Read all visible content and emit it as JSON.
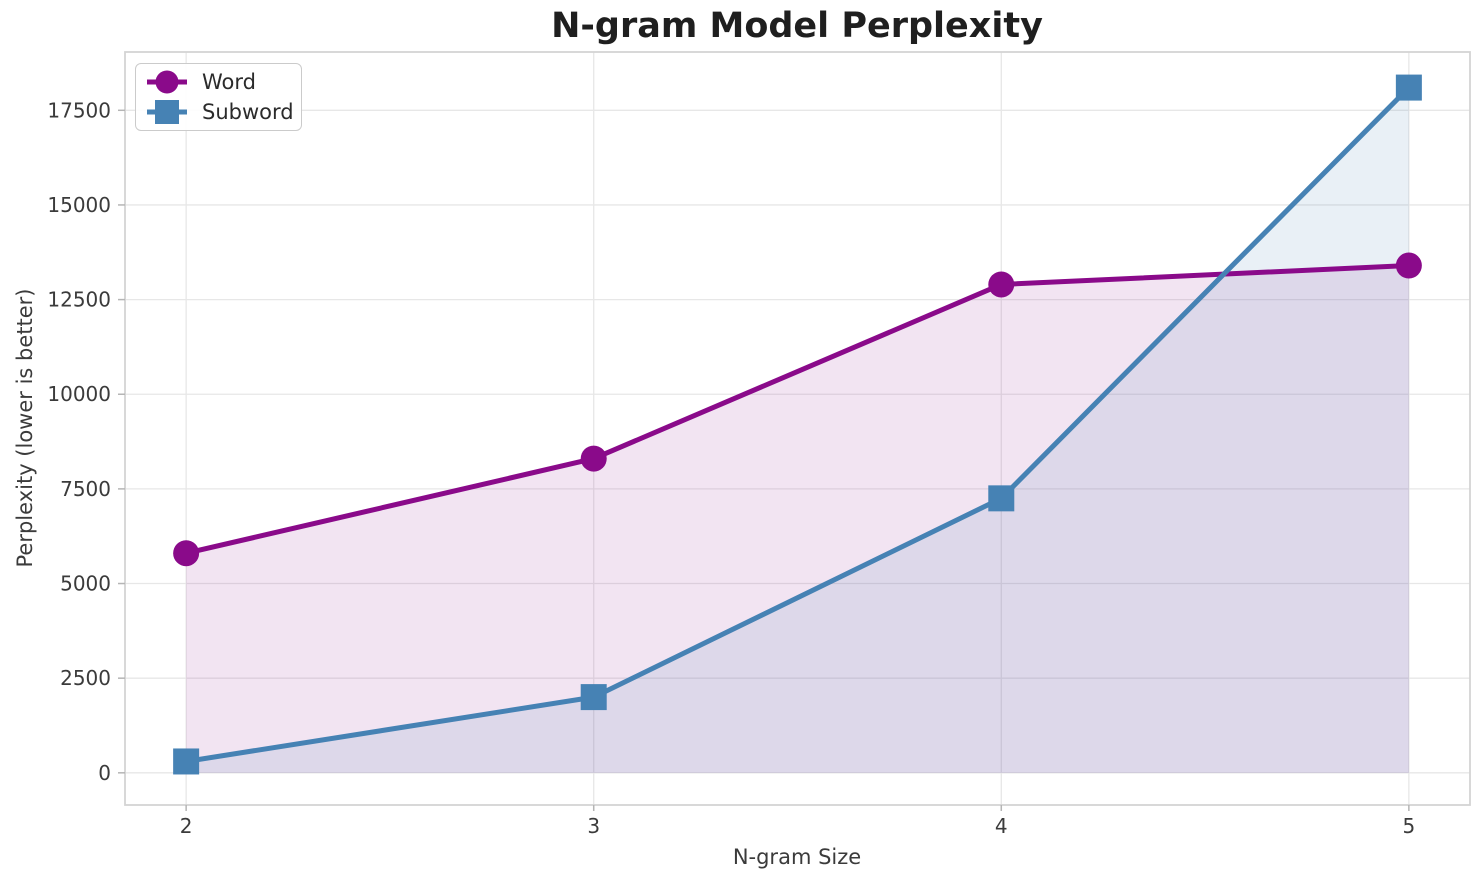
{
  "chart_data": {
    "type": "line",
    "title": "N-gram Model Perplexity",
    "xlabel": "N-gram Size",
    "ylabel": "Perplexity (lower is better)",
    "x": [
      2,
      3,
      4,
      5
    ],
    "series": [
      {
        "name": "Word",
        "values": [
          5800,
          8300,
          12900,
          13400
        ],
        "color": "#8A0A8A",
        "marker": "circle",
        "fill_to_zero": true,
        "fill_alpha": 0.11
      },
      {
        "name": "Subword",
        "values": [
          300,
          2000,
          7250,
          18100
        ],
        "color": "#4682B4",
        "marker": "square",
        "fill_to_zero": true,
        "fill_alpha": 0.12
      }
    ],
    "xticks": [
      2,
      3,
      4,
      5
    ],
    "yticks": [
      0,
      2500,
      5000,
      7500,
      10000,
      12500,
      15000,
      17500
    ],
    "xlim": [
      1.85,
      5.15
    ],
    "ylim": [
      -850,
      19040
    ],
    "grid": true,
    "legend_position": "upper-left"
  },
  "colors": {
    "grid": "#e7e7e7",
    "spine": "#d4d4d4",
    "tick_mark": "#b5b5b5",
    "tick_text": "#3b3b3b",
    "title_text": "#1f1f1f"
  }
}
